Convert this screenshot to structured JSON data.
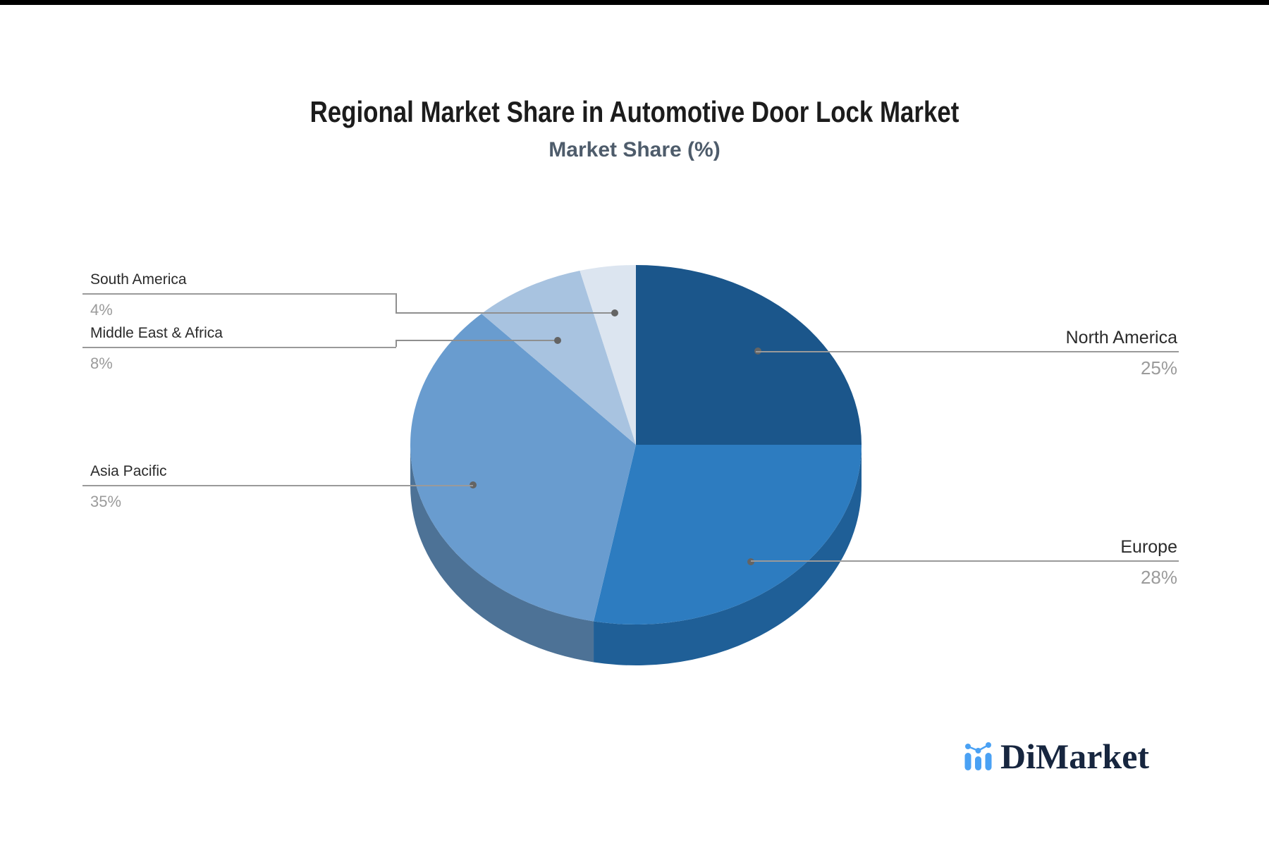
{
  "page": {
    "background": "#ffffff",
    "top_edge_bar_color": "#000000"
  },
  "chart_data": {
    "type": "pie",
    "title": "Regional Market Share in Automotive Door Lock Market",
    "subtitle": "Market Share (%)",
    "unit": "%",
    "style": "3d-pie",
    "start_angle_deg": 0,
    "direction": "clockwise",
    "legend_position": "none",
    "labels": "leader-lines",
    "series": [
      {
        "name": "North America",
        "value": 25,
        "label": "25%",
        "color": "#1b568b",
        "side_color": "#174a77"
      },
      {
        "name": "Europe",
        "value": 28,
        "label": "28%",
        "color": "#2d7cc0",
        "side_color": "#1f5f97"
      },
      {
        "name": "Asia Pacific",
        "value": 35,
        "label": "35%",
        "color": "#699ccf",
        "side_color": "#4d7296"
      },
      {
        "name": "Middle East & Africa",
        "value": 8,
        "label": "8%",
        "color": "#a8c3e0",
        "side_color": "#7e9cc0"
      },
      {
        "name": "South America",
        "value": 4,
        "label": "4%",
        "color": "#dce5f0",
        "side_color": "#aebfd3"
      }
    ],
    "label_name_color": "#2b2b2b",
    "label_value_color": "#9b9b9b",
    "leader_line_color": "#8f8f8f",
    "leader_dot_color": "#646464",
    "title_color": "#1c1c1c",
    "subtitle_color": "#4e5c6b"
  },
  "logo": {
    "brand": "DiMarket",
    "icon_color": "#4aa1f4",
    "text_color": "#17263f"
  }
}
